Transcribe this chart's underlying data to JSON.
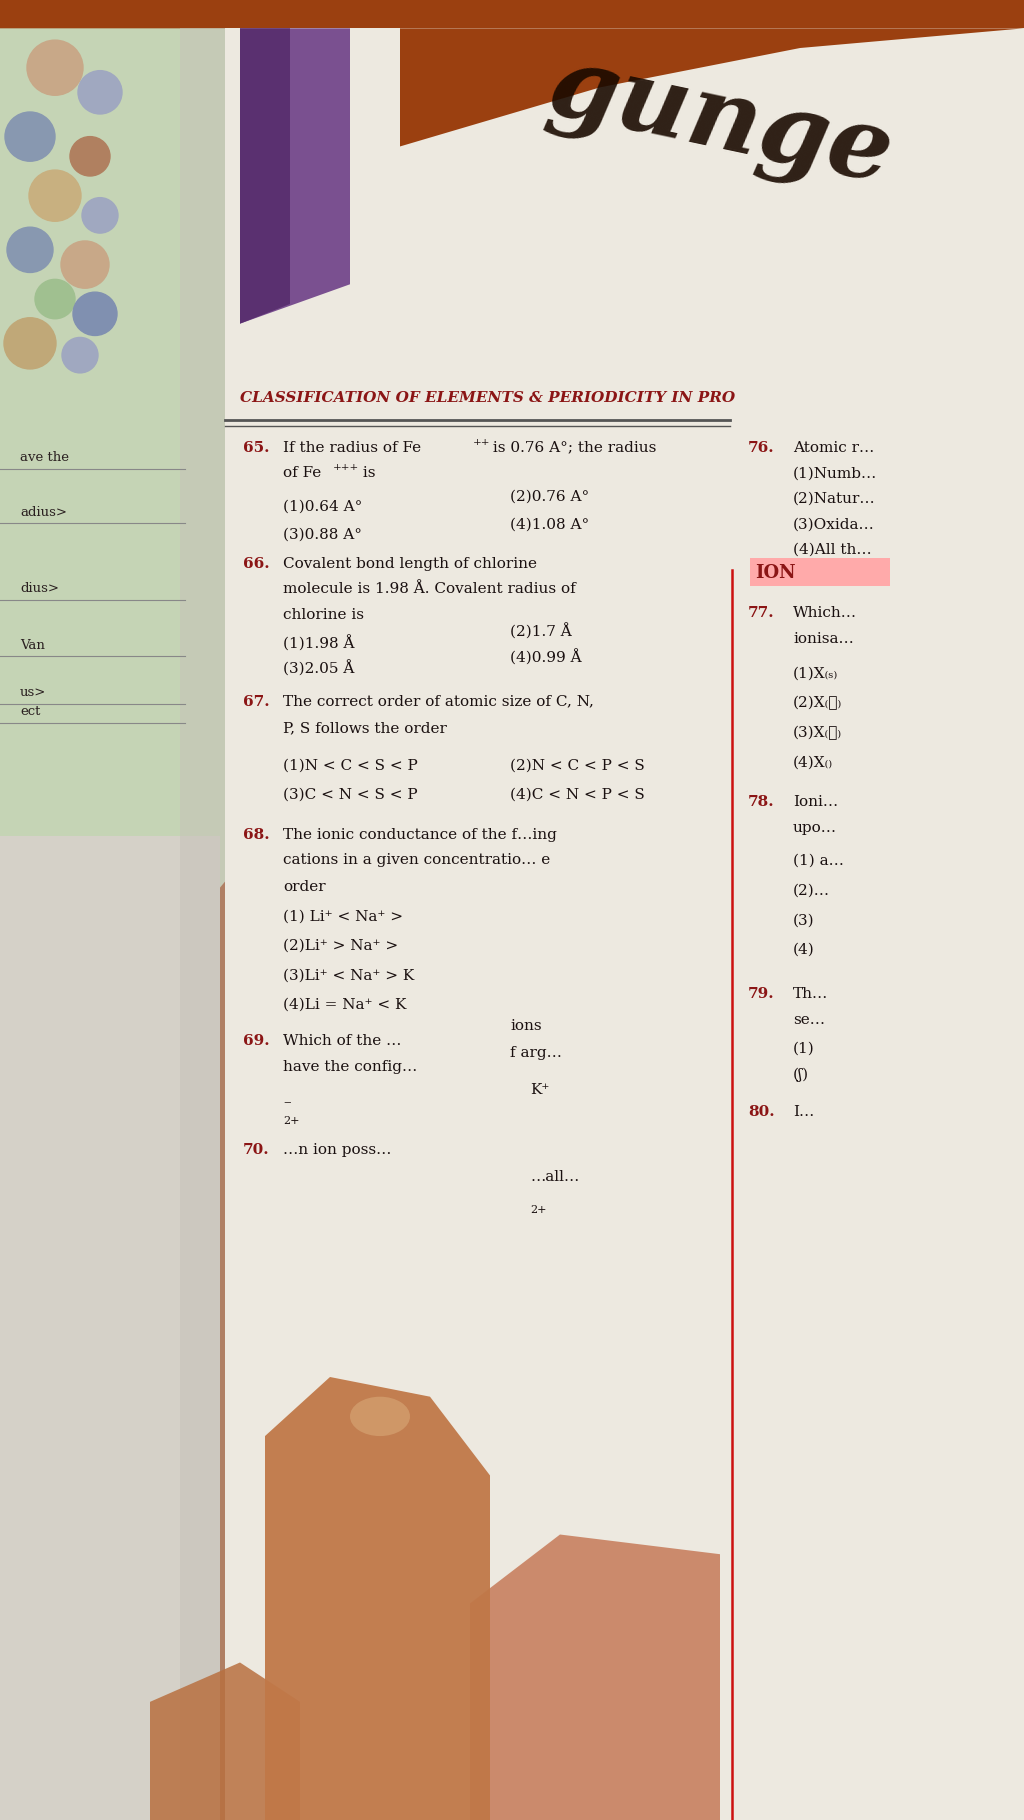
{
  "page_bg": "#EDE9E0",
  "left_page_bg": "#D5D1C8",
  "cover_bg": "#C5D4B5",
  "wood_bg": "#9B4010",
  "title_color": "#8B1515",
  "text_dark": "#1A1010",
  "text_red": "#8B1515",
  "chapter_title": "CLASSIFICATION OF ELEMENTS & PERIODICITY IN PRO",
  "ion_box_color": "#FFAAAA",
  "left_texts": [
    "ave the",
    "adius>",
    "dius>",
    "Van",
    "us>",
    "ect"
  ],
  "circle_colors": [
    "#C8A888",
    "#A0A8C0",
    "#7888B0",
    "#C09878",
    "#C8A888",
    "#A0A8C0",
    "#B8A888",
    "#7888B0"
  ],
  "finger1_color": "#C07848",
  "finger2_color": "#D09060",
  "gunge_color": "#1A0A00"
}
